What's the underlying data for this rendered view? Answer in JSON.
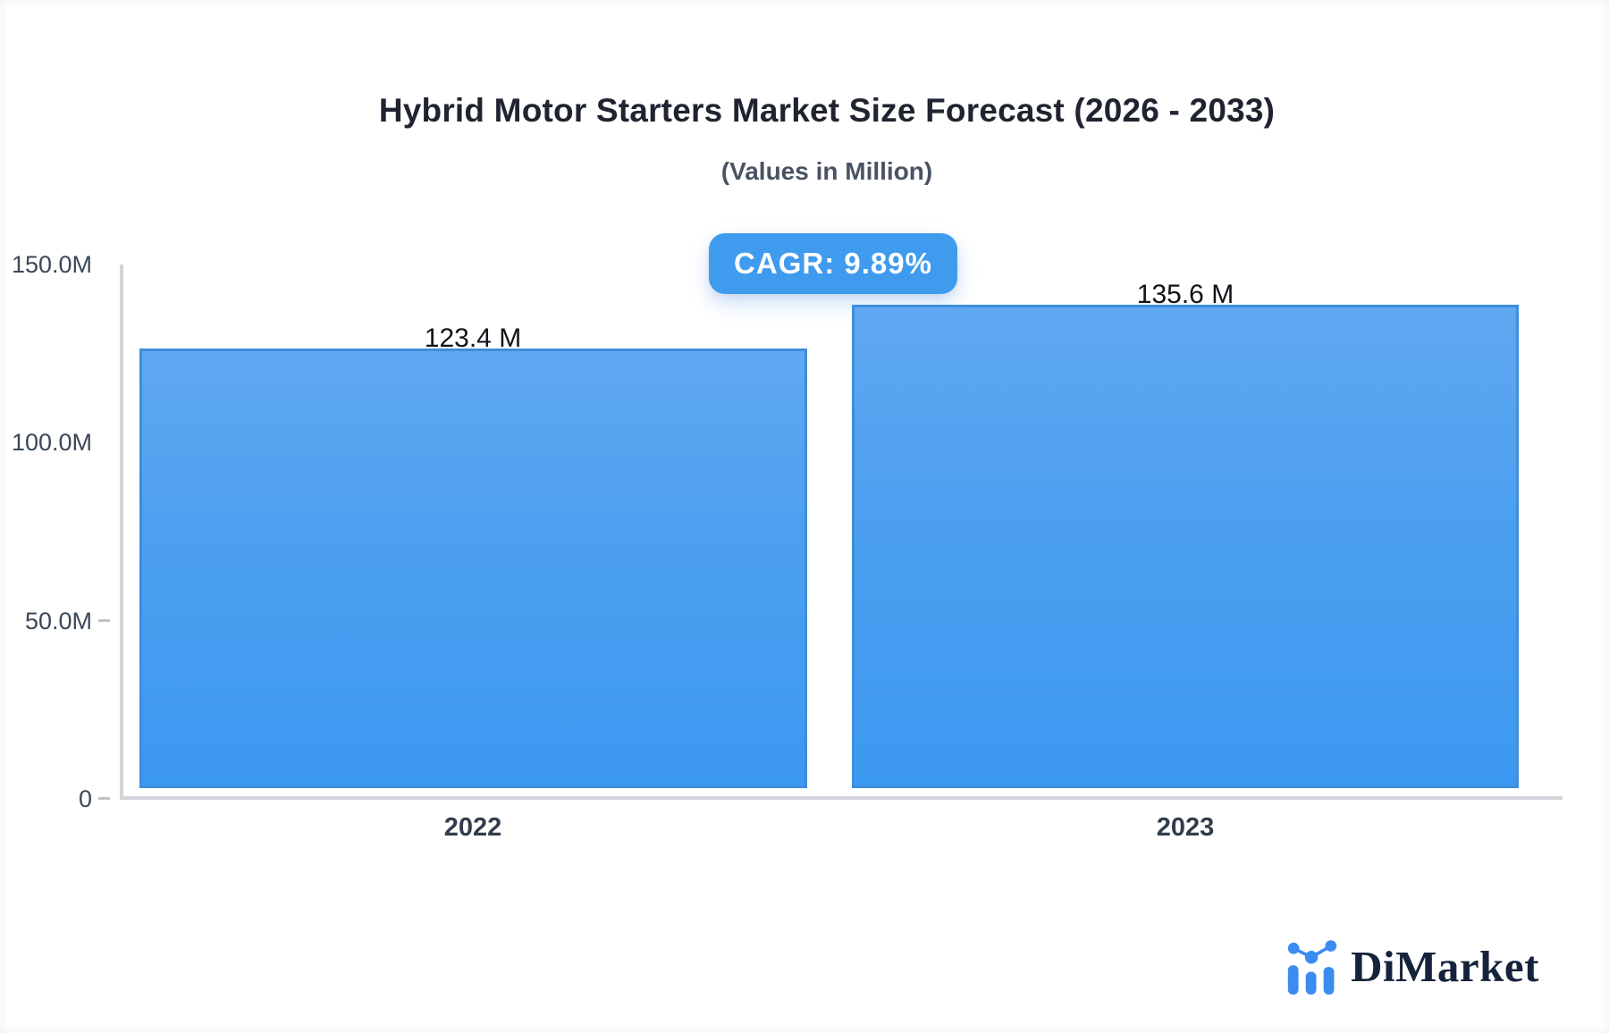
{
  "title": "Hybrid Motor Starters Market Size Forecast (2026 - 2033)",
  "subtitle": "(Values in Million)",
  "cagr_badge": {
    "label": "CAGR: 9.89%",
    "color": "#3f9bee",
    "text_color": "#ffffff"
  },
  "brand": {
    "name": "DiMarket",
    "icon": "bar-chart-logo-icon",
    "text_color": "#16233c",
    "icon_color": "#3b8bf0"
  },
  "chart_data": {
    "type": "bar",
    "title": "Hybrid Motor Starters Market Size Forecast (2026 - 2033)",
    "subtitle": "(Values in Million)",
    "categories": [
      "2022",
      "2023"
    ],
    "values": [
      123.4,
      135.6
    ],
    "value_labels": [
      "123.4 M",
      "135.6 M"
    ],
    "unit": "Million",
    "cagr_percent": 9.89,
    "ylim": [
      0,
      150
    ],
    "y_ticks": [
      "150.0M",
      "100.0M",
      "50.0M",
      "0"
    ],
    "grid": false,
    "legend": "none",
    "bar_color_top": "#60a8f1",
    "bar_color_bottom": "#3c99f1",
    "bar_border_color": "#3e8edc",
    "axis_color": "#d2d6db"
  }
}
